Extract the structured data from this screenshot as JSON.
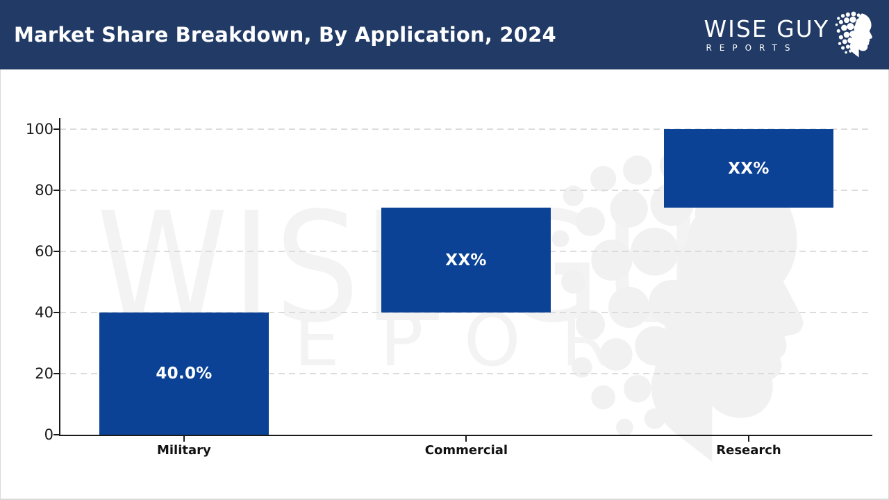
{
  "header": {
    "title": "Market Share Breakdown, By Application, 2024",
    "logo": {
      "line1": "WISE GUY",
      "line2": "REPORTS"
    }
  },
  "watermark": {
    "line1": "WISE GUY",
    "line2": "REPORTS"
  },
  "chart_data": {
    "type": "bar",
    "subtype": "waterfall-stacked-percent",
    "title": "Market Share Breakdown, By Application, 2024",
    "categories": [
      "Military",
      "Commercial",
      "Research"
    ],
    "segments": [
      {
        "category": "Military",
        "start": 0,
        "end": 40,
        "value_label": "40.0%"
      },
      {
        "category": "Commercial",
        "start": 40,
        "end": 74.3,
        "value_label": "XX%"
      },
      {
        "category": "Research",
        "start": 74.3,
        "end": 100,
        "value_label": "XX%"
      }
    ],
    "y_ticks": [
      0,
      20,
      40,
      60,
      80,
      100
    ],
    "ylim": [
      0,
      100
    ],
    "xlabel": "",
    "ylabel": "",
    "grid": "dashed-horizontal",
    "legend": "none"
  },
  "colors": {
    "header_bg": "#213a66",
    "bar": "#0b4296",
    "bar_label": "#ffffff",
    "axis": "#1a1a1a",
    "grid": "#dcdcdc",
    "watermark": "#f3f3f3",
    "page_border": "#d9d9d9"
  }
}
